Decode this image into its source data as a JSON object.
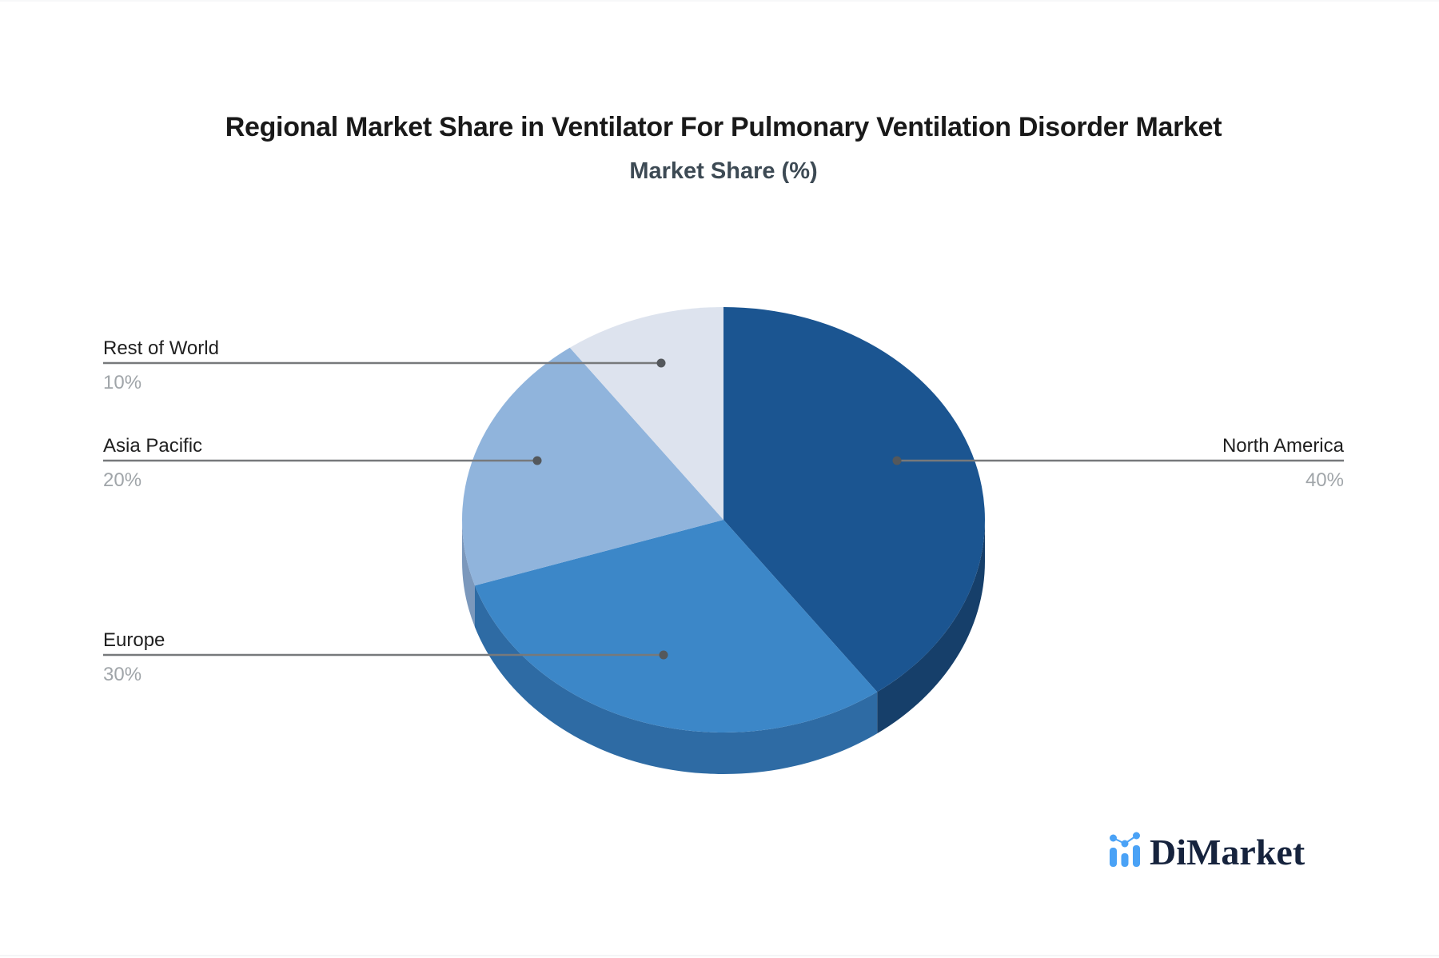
{
  "title": "Regional Market Share in Ventilator For Pulmonary Ventilation Disorder Market",
  "subtitle": "Market Share (%)",
  "chart_data": {
    "type": "pie",
    "style": "3d",
    "units": "%",
    "start_angle_deg": -90,
    "direction": "clockwise",
    "legend_position": "callout-labels",
    "series": [
      {
        "name": "North America",
        "value": 40,
        "pct_label": "40%",
        "color": "#1b5591",
        "side_color": "#163f6a"
      },
      {
        "name": "Europe",
        "value": 30,
        "pct_label": "30%",
        "color": "#3c87c8",
        "side_color": "#2e6ba4"
      },
      {
        "name": "Asia Pacific",
        "value": 20,
        "pct_label": "20%",
        "color": "#90b4dc",
        "side_color": "#7b98bc"
      },
      {
        "name": "Rest of World",
        "value": 10,
        "pct_label": "10%",
        "color": "#dde3ee",
        "side_color": "#c3ccd9"
      }
    ]
  },
  "colors": {
    "background": "#ffffff",
    "title_text": "#191919",
    "subtitle_text": "#3d4a54",
    "label_text": "#1f1f1f",
    "pct_text": "#a0a5a9",
    "leader_line": "#77797b",
    "leader_dot": "#54585c",
    "logo_text": "#16233d",
    "logo_accent": "#4aa2f6"
  },
  "logo": {
    "text": "DiMarket",
    "icon": "bar-line-chart-icon"
  }
}
